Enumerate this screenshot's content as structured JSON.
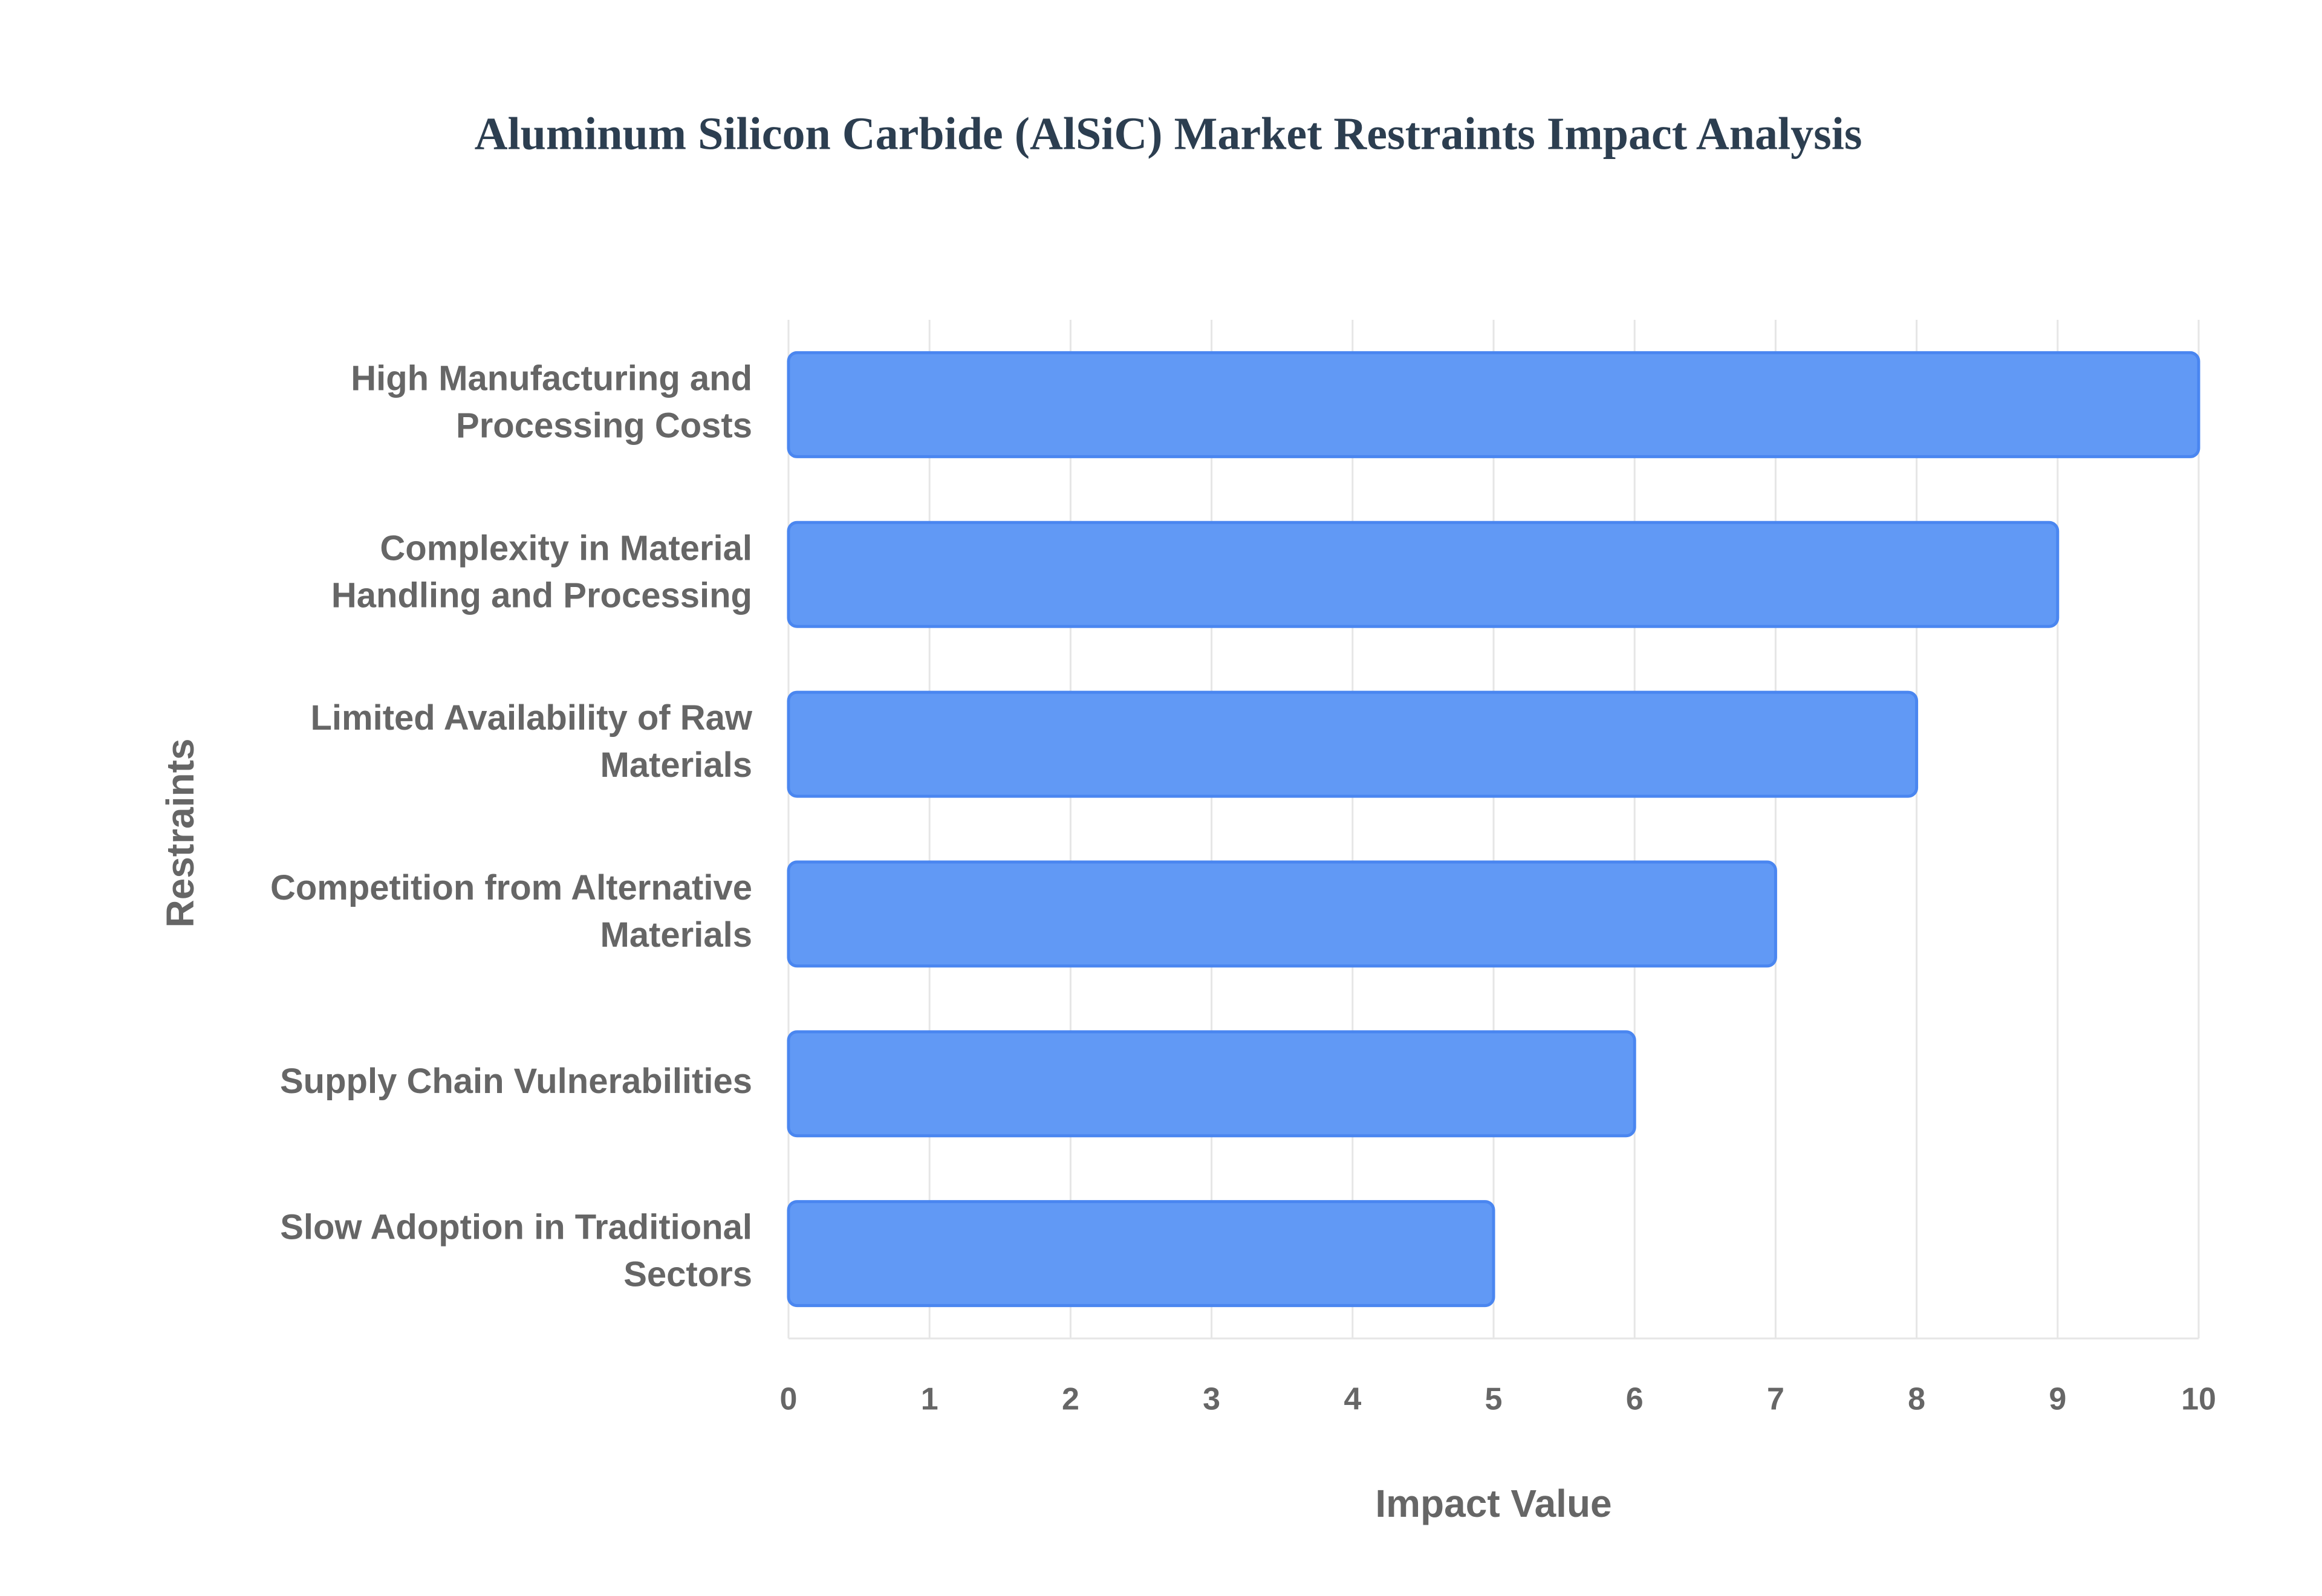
{
  "chart_data": {
    "type": "bar",
    "orientation": "horizontal",
    "title": "Aluminum Silicon Carbide (AlSiC) Market Restraints Impact Analysis",
    "x_label": "Impact Value",
    "y_label": "Restraints",
    "categories": [
      "High Manufacturing and Processing Costs",
      "Complexity in Material Handling and Processing",
      "Limited Availability of Raw Materials",
      "Competition from Alternative Materials",
      "Supply Chain Vulnerabilities",
      "Slow Adoption in Traditional Sectors"
    ],
    "values": [
      10,
      9,
      8,
      7,
      6,
      5
    ],
    "color": "#6199f5",
    "xlim": [
      0,
      10
    ],
    "xticks": [
      0,
      1,
      2,
      3,
      4,
      5,
      6,
      7,
      8,
      9,
      10
    ],
    "grid": true
  }
}
